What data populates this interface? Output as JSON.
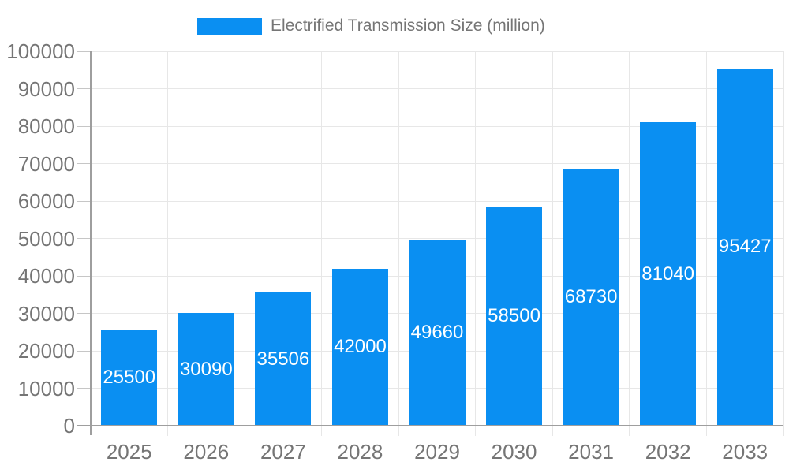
{
  "chart_data": {
    "type": "bar",
    "title": "",
    "legend": {
      "label": "Electrified Transmission Size (million)",
      "position": "top"
    },
    "categories": [
      "2025",
      "2026",
      "2027",
      "2028",
      "2029",
      "2030",
      "2031",
      "2032",
      "2033"
    ],
    "series": [
      {
        "name": "Electrified Transmission Size (million)",
        "values": [
          25500,
          30090,
          35506,
          42000,
          49660,
          58500,
          68730,
          81040,
          95427
        ]
      }
    ],
    "value_labels": [
      "25500",
      "30090",
      "35506",
      "42000",
      "49660",
      "58500",
      "68730",
      "81040",
      "95427"
    ],
    "xlabel": "",
    "ylabel": "",
    "ylim": [
      0,
      100000
    ],
    "ytick_step": 10000,
    "ytick_labels": [
      "0",
      "10000",
      "20000",
      "30000",
      "40000",
      "50000",
      "60000",
      "70000",
      "80000",
      "90000",
      "100000"
    ],
    "grid": true,
    "colors": {
      "bar": "#0A8FF2",
      "axis_text": "#757575",
      "value_label": "#FFFFFF",
      "gridline": "#E7E7E7",
      "axis_line": "#9E9E9E",
      "tick": "#C6C6C6",
      "background": "#FFFFFF"
    }
  }
}
